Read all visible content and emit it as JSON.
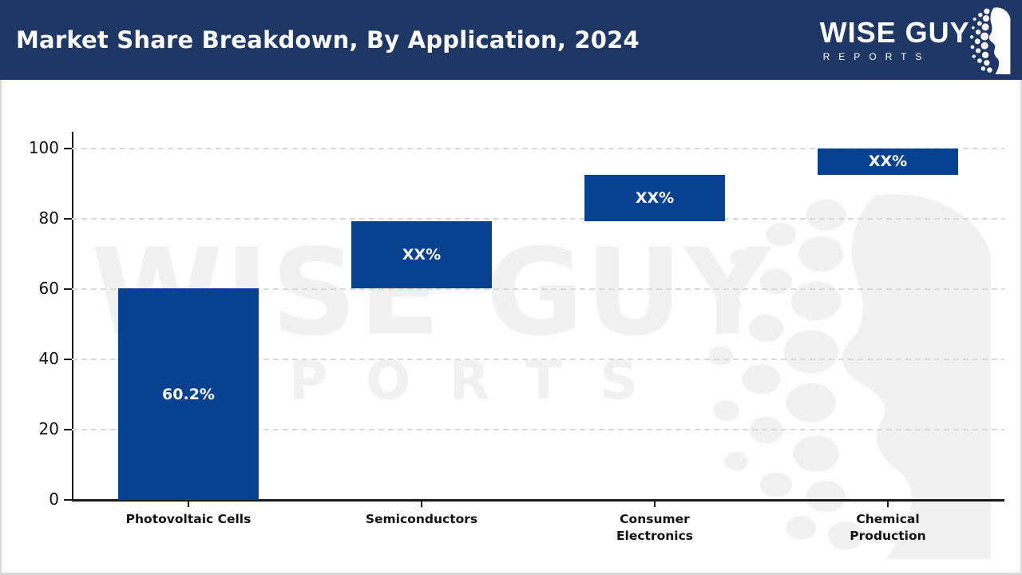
{
  "header": {
    "title": "Market Share Breakdown, By Application, 2024",
    "logo": {
      "line1": "WISE GUY",
      "line2": "REPORTS"
    }
  },
  "watermark": {
    "line1": "WISE GUY",
    "line2": "REPORTS"
  },
  "colors": {
    "header_bg": "#1e3765",
    "bar": "#07418f",
    "axis": "#1a1a1a",
    "gridline": "#dadada",
    "watermark": "#f1f1f1",
    "bar_label": "#ffffff",
    "frame_border": "#d9d9d9"
  },
  "chart_data": {
    "type": "bar",
    "subtype": "waterfall",
    "title": "Market Share Breakdown, By Application, 2024",
    "categories": [
      "Photovoltaic Cells",
      "Semiconductors",
      "Consumer\nElectronics",
      "Chemical\nProduction"
    ],
    "segments": [
      {
        "category": "Photovoltaic Cells",
        "start": 0,
        "end": 60.2,
        "label": "60.2%"
      },
      {
        "category": "Semiconductors",
        "start": 60.2,
        "end": 79.3,
        "label": "XX%"
      },
      {
        "category": "Consumer Electronics",
        "start": 79.3,
        "end": 92.6,
        "label": "XX%"
      },
      {
        "category": "Chemical Production",
        "start": 92.6,
        "end": 100,
        "label": "XX%"
      }
    ],
    "yticks": [
      0,
      20,
      40,
      60,
      80,
      100
    ],
    "ylim": [
      0,
      104
    ],
    "xlabel": "",
    "ylabel": "",
    "grid": "horizontal dashed",
    "legend": "none",
    "bar_color": "#07418f"
  }
}
